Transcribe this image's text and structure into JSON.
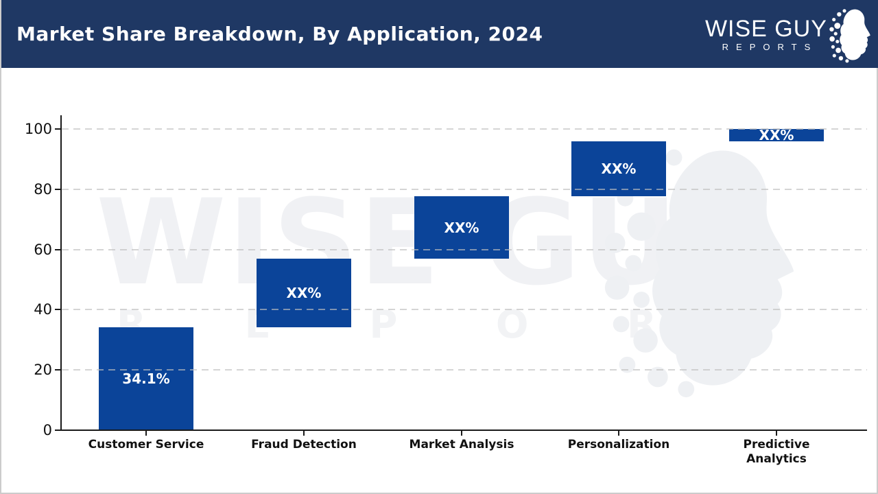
{
  "header": {
    "title": "Market Share Breakdown, By Application, 2024",
    "logo": {
      "line1": "WISE GUY",
      "line2": "REPORTS"
    }
  },
  "watermark": {
    "line1": "WISE GUY",
    "line2": "R E P O R T S"
  },
  "chart_data": {
    "type": "bar",
    "subtype": "waterfall-floating-bars",
    "title": "Market Share Breakdown, By Application, 2024",
    "categories": [
      "Customer Service",
      "Fraud Detection",
      "Market Analysis",
      "Personalization",
      "Predictive Analytics"
    ],
    "series": [
      {
        "name": "Market Share %",
        "segments": [
          {
            "category": "Customer Service",
            "start": 0,
            "end": 34.1,
            "label": "34.1%"
          },
          {
            "category": "Fraud Detection",
            "start": 34.1,
            "end": 56.9,
            "label": "XX%"
          },
          {
            "category": "Market Analysis",
            "start": 56.9,
            "end": 77.7,
            "label": "XX%"
          },
          {
            "category": "Personalization",
            "start": 77.7,
            "end": 95.9,
            "label": "XX%"
          },
          {
            "category": "Predictive Analytics",
            "start": 95.9,
            "end": 100,
            "label": "XX%"
          }
        ]
      }
    ],
    "xlabel": "",
    "ylabel": "",
    "ylim": [
      0,
      100
    ],
    "yticks": [
      0,
      20,
      40,
      60,
      80,
      100
    ],
    "grid": "horizontal-dashed-over-bars",
    "legend": "none",
    "bar_color": "#0b4499",
    "bar_label_color": "#ffffff"
  },
  "colors": {
    "header_bg": "#1f3864",
    "bar": "#0b4499",
    "grid": "#d4d4d4",
    "axis": "#1a1a1a",
    "watermark": "#f0f1f4"
  }
}
